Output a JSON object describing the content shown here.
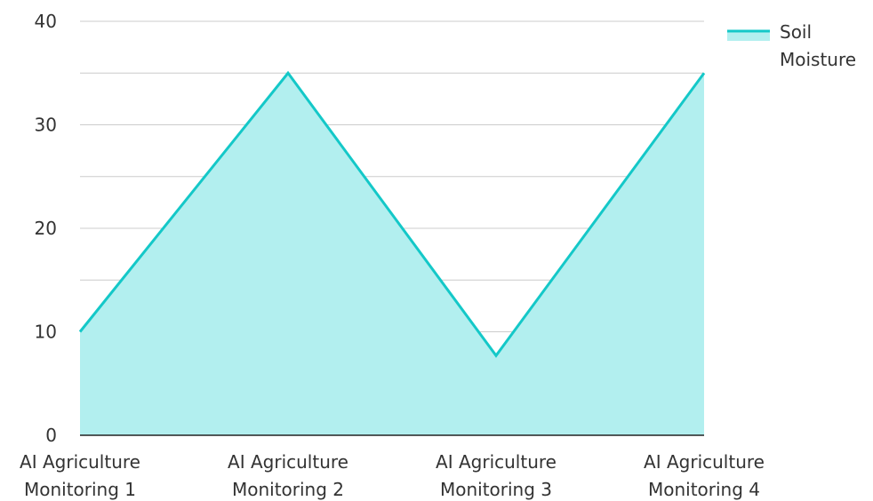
{
  "chart_data": {
    "type": "area",
    "categories": [
      "AI Agriculture Monitoring 1",
      "AI Agriculture Monitoring 2",
      "AI Agriculture Monitoring 3",
      "AI Agriculture Monitoring 4"
    ],
    "category_lines": [
      [
        "AI Agriculture",
        "Monitoring 1"
      ],
      [
        "AI Agriculture",
        "Monitoring 2"
      ],
      [
        "AI Agriculture",
        "Monitoring 3"
      ],
      [
        "AI Agriculture",
        "Monitoring 4"
      ]
    ],
    "series": [
      {
        "name": "Soil Moisture",
        "values": [
          10,
          35,
          7.7,
          35
        ]
      }
    ],
    "legend_lines": [
      "Soil",
      "Moisture"
    ],
    "ylim": [
      0,
      40
    ],
    "yticks": [
      0,
      10,
      20,
      30,
      40
    ],
    "grid": true,
    "legend_position": "top-right",
    "title": "",
    "xlabel": "",
    "ylabel": ""
  },
  "colors": {
    "line": "#14c8c8",
    "fill": "#b2efef",
    "grid": "#cccccc",
    "axis": "#222222"
  }
}
